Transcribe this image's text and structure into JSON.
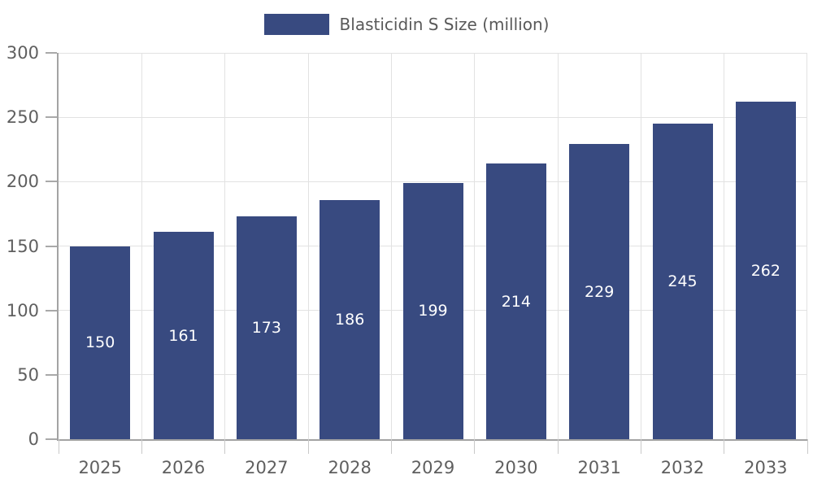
{
  "legend": {
    "label": "Blasticidin S Size (million)"
  },
  "chart_data": {
    "type": "bar",
    "title": "",
    "xlabel": "",
    "ylabel": "",
    "categories": [
      "2025",
      "2026",
      "2027",
      "2028",
      "2029",
      "2030",
      "2031",
      "2032",
      "2033"
    ],
    "series": [
      {
        "name": "Blasticidin S Size (million)",
        "values": [
          150,
          161,
          173,
          186,
          199,
          214,
          229,
          245,
          262
        ]
      }
    ],
    "bar_labels": [
      "150",
      "161",
      "173",
      "186",
      "199",
      "214",
      "229",
      "245",
      "262"
    ],
    "ylim": [
      0,
      300
    ],
    "yticks": [
      0,
      50,
      100,
      150,
      200,
      250,
      300
    ],
    "grid": true,
    "legend_position": "top-center"
  },
  "colors": {
    "bar": "#384a80",
    "bar_label": "#ffffff",
    "axis": "#a3a3a3",
    "gridline": "#e2e2e2",
    "tick_label": "#5f5f5f",
    "legend_text": "#595959"
  }
}
